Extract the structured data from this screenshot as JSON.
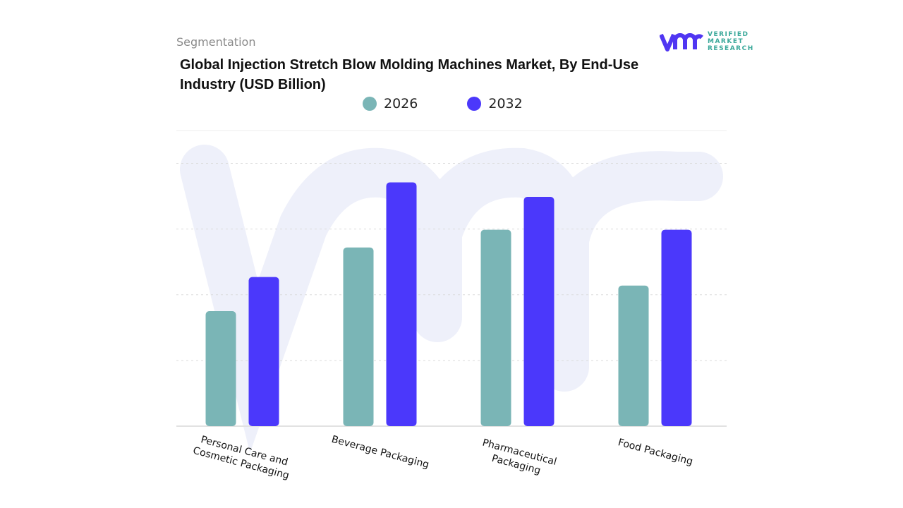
{
  "header": {
    "segment_label": "Segmentation"
  },
  "logo": {
    "mark": "vmr",
    "lines": [
      "VERIFIED",
      "MARKET",
      "RESEARCH"
    ],
    "color": "#5036f2"
  },
  "chart_data": {
    "type": "bar",
    "title": "Global Injection Stretch Blow Molding Machines Market, By End-Use Industry (USD Billion)",
    "categories": [
      "Personal Care and Cosmetic Packaging",
      "Beverage Packaging",
      "Pharmaceutical Packaging",
      "Food Packaging"
    ],
    "series": [
      {
        "name": "2026",
        "color": "#7ab5b6",
        "values": [
          1.75,
          2.72,
          2.99,
          2.14
        ]
      },
      {
        "name": "2032",
        "color": "#4b38fb",
        "values": [
          2.27,
          3.71,
          3.49,
          2.99
        ]
      }
    ],
    "xlabel": "",
    "ylabel": "",
    "ylim": [
      0,
      4.5
    ],
    "grid": true,
    "legend": "top-center"
  }
}
